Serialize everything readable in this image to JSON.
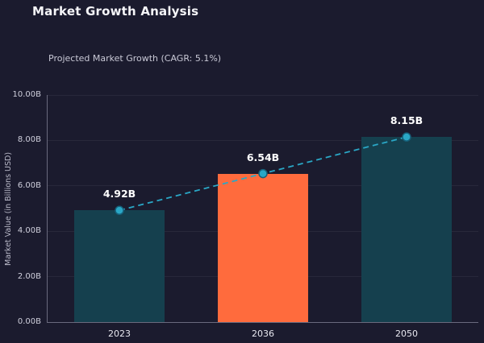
{
  "title": "Market Growth Analysis",
  "subtitle": "Projected Market Growth (CAGR: 5.1%)",
  "chart_data": {
    "type": "bar",
    "title": "Market Growth Analysis",
    "subtitle": "Projected Market Growth (CAGR: 5.1%)",
    "categories": [
      "2023",
      "2036",
      "2050"
    ],
    "values": [
      4.92,
      6.54,
      8.15
    ],
    "value_labels": [
      "4.92B",
      "6.54B",
      "8.15B"
    ],
    "bar_colors": [
      "#15404e",
      "#ff6b3d",
      "#15404e"
    ],
    "trend_line": {
      "style": "dashed",
      "color": "#2aa7c6",
      "marker_color": "#2aa7c6",
      "marker_edge_color": "#16607a"
    },
    "xlabel": "",
    "ylabel": "Market Value (in Billions USD)",
    "ylim": [
      0,
      10
    ],
    "y_ticks": [
      {
        "value": 0,
        "label": "0.00B"
      },
      {
        "value": 2,
        "label": "2.00B"
      },
      {
        "value": 4,
        "label": "4.00B"
      },
      {
        "value": 6,
        "label": "6.00B"
      },
      {
        "value": 8,
        "label": "8.00B"
      },
      {
        "value": 10,
        "label": "10.00B"
      }
    ],
    "grid": true,
    "legend": false,
    "colors": {
      "background": "#1b1b2e",
      "title_text": "#f5f5f8",
      "subtitle_text": "#c9c9d6",
      "tick_text": "#cfcfdc",
      "axis_line": "#6a6a7e"
    }
  }
}
